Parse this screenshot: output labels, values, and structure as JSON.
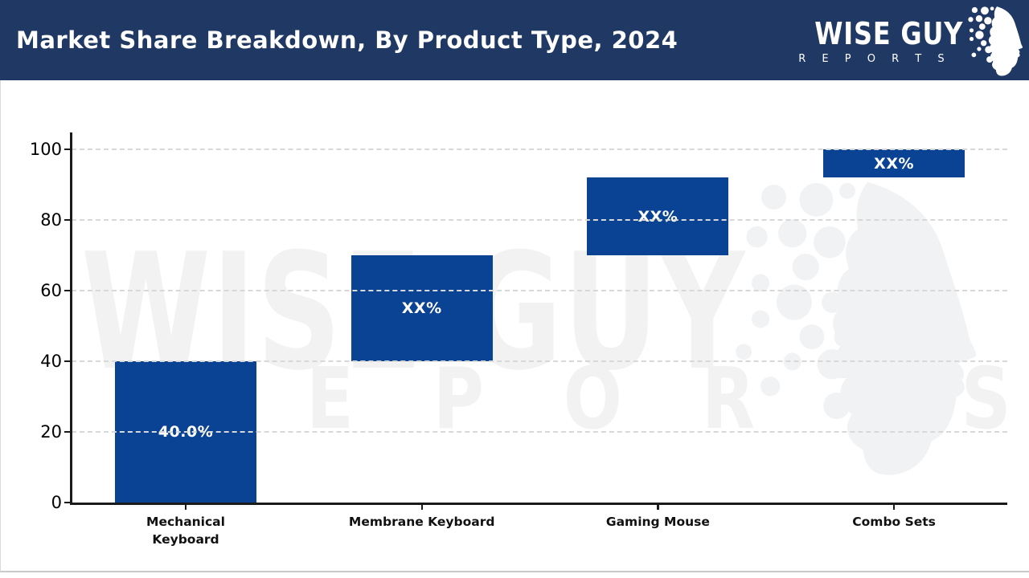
{
  "header": {
    "title": "Market Share Breakdown, By Product Type, 2024",
    "logo": {
      "line1": "WISE GUY",
      "line2": "R E P O R T S"
    }
  },
  "watermark": {
    "line1": "WISE GUY",
    "line2": "R E P O R T S"
  },
  "chart_data": {
    "type": "bar",
    "subtype": "waterfall",
    "title": "Market Share Breakdown, By Product Type, 2024",
    "categories": [
      "Mechanical Keyboard",
      "Membrane Keyboard",
      "Gaming Mouse",
      "Combo Sets"
    ],
    "bars": [
      {
        "category": "Mechanical Keyboard",
        "tick_label": "Mechanical\nKeyboard",
        "start": 0,
        "end": 40,
        "value": 40,
        "label": "40.0%"
      },
      {
        "category": "Membrane Keyboard",
        "tick_label": "Membrane Keyboard",
        "start": 40,
        "end": 70,
        "value": 30,
        "label": "XX%"
      },
      {
        "category": "Gaming Mouse",
        "tick_label": "Gaming Mouse",
        "start": 70,
        "end": 92,
        "value": 22,
        "label": "XX%"
      },
      {
        "category": "Combo Sets",
        "tick_label": "Combo Sets",
        "start": 92,
        "end": 100,
        "value": 8,
        "label": "XX%"
      }
    ],
    "xlabel": "",
    "ylabel": "",
    "yticks": [
      0,
      20,
      40,
      60,
      80,
      100
    ],
    "ylim": [
      0,
      105
    ],
    "grid": "horizontal-dashed",
    "legend": "none",
    "bar_color": "#0a4394",
    "bar_label_color": "#ffffff",
    "header_color": "#203864",
    "grid_color": "#d8d8d8",
    "axis_color": "#1a1a1a"
  }
}
